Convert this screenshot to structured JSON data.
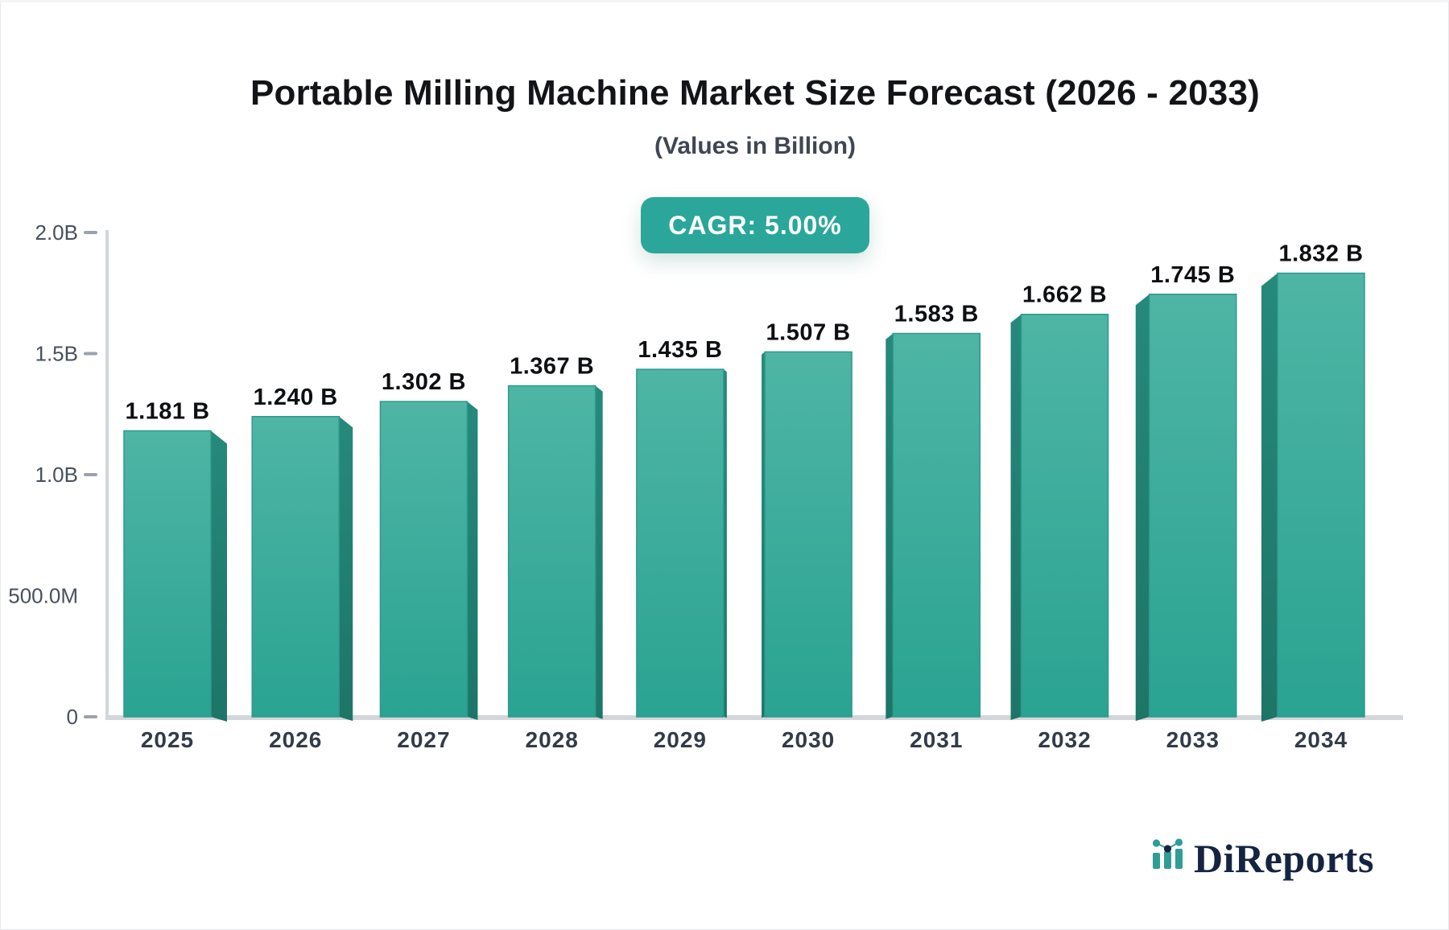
{
  "header": {
    "title": "Portable Milling Machine Market Size Forecast (2026 - 2033)",
    "subtitle": "(Values in Billion)",
    "cagr_label": "CAGR: 5.00%"
  },
  "chart_data": {
    "type": "bar",
    "title": "Portable Milling Machine Market Size Forecast (2026 - 2033)",
    "subtitle": "(Values in Billion)",
    "unit": "Billion USD",
    "categories": [
      "2025",
      "2026",
      "2027",
      "2028",
      "2029",
      "2030",
      "2031",
      "2032",
      "2033",
      "2034"
    ],
    "values": [
      1.181,
      1.24,
      1.302,
      1.367,
      1.435,
      1.507,
      1.583,
      1.662,
      1.745,
      1.832
    ],
    "value_labels": [
      "1.181 B",
      "1.240 B",
      "1.302 B",
      "1.367 B",
      "1.435 B",
      "1.507 B",
      "1.583 B",
      "1.662 B",
      "1.745 B",
      "1.832 B"
    ],
    "cagr": "5.00%",
    "ylim": [
      0,
      2.0
    ],
    "y_ticks": [
      {
        "label": "2.0B",
        "value": 2.0,
        "dash": true
      },
      {
        "label": "1.5B",
        "value": 1.5,
        "dash": true
      },
      {
        "label": "1.0B",
        "value": 1.0,
        "dash": true
      },
      {
        "label": "500.0M",
        "value": 0.5,
        "dash": false
      },
      {
        "label": "0",
        "value": 0.0,
        "dash": true
      }
    ],
    "grid": false,
    "legend": false,
    "bar_style": "3d"
  },
  "colors": {
    "bar_face_top": "#4fb5a5",
    "bar_face_bottom": "#2aa392",
    "bar_edge": "#2d9a8b",
    "bar_side_top": "#25897b",
    "bar_side_bottom": "#1d7568",
    "badge_bg": "#2aa79a",
    "badge_text": "#ffffff",
    "axis_line": "#d3d6da",
    "tick_dash": "#9aa2ac",
    "y_label": "#47505e",
    "x_label": "#333b49",
    "value_label": "#0d0f12",
    "title": "#131417",
    "subtitle": "#3f4653",
    "logo_teal": "#2f9d96",
    "logo_navy": "#152440"
  },
  "footer": {
    "brand": "DiReports"
  }
}
